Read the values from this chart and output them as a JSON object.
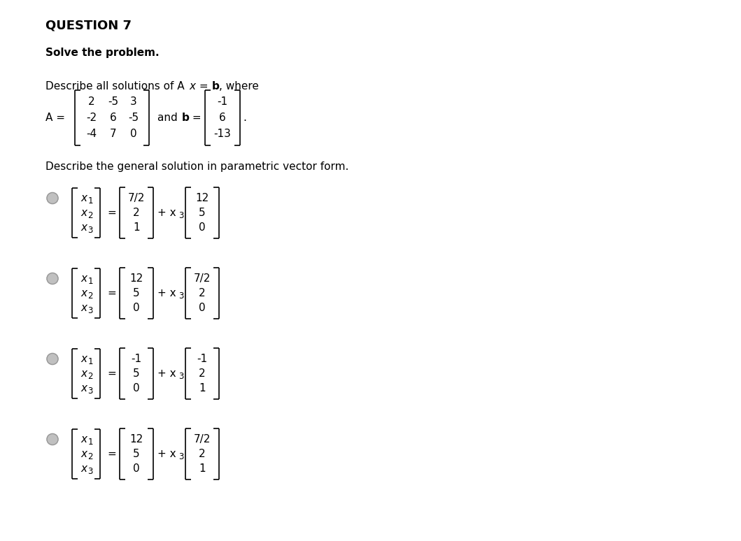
{
  "title": "QUESTION 7",
  "subtitle": "Solve the problem.",
  "A_matrix": [
    [
      "2",
      "-5",
      "3"
    ],
    [
      "-2",
      "6",
      "-5"
    ],
    [
      "-4",
      "7",
      "0"
    ]
  ],
  "b_vector": [
    "-1",
    "6",
    "-13"
  ],
  "parametric_text": "Describe the general solution in parametric vector form.",
  "options": [
    {
      "vec1": [
        "7/2",
        "2",
        "1"
      ],
      "vec2": [
        "12",
        "5",
        "0"
      ]
    },
    {
      "vec1": [
        "12",
        "5",
        "0"
      ],
      "vec2": [
        "7/2",
        "2",
        "0"
      ]
    },
    {
      "vec1": [
        "-1",
        "5",
        "0"
      ],
      "vec2": [
        "-1",
        "2",
        "1"
      ]
    },
    {
      "vec1": [
        "12",
        "5",
        "0"
      ],
      "vec2": [
        "7/2",
        "2",
        "1"
      ]
    }
  ],
  "bg_color": "#ffffff",
  "text_color": "#000000",
  "radio_color": "#c0c0c0",
  "radio_edge": "#999999",
  "bracket_color": "#000000",
  "font_size_title": 13,
  "font_size_body": 11,
  "font_size_math": 11,
  "font_size_sub": 8.5
}
